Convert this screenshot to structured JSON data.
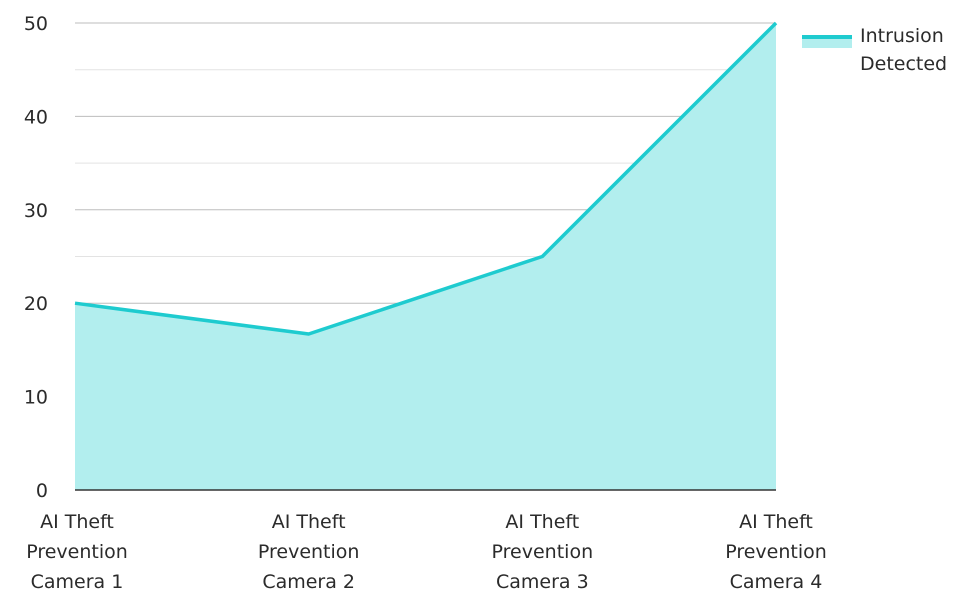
{
  "chart_data": {
    "type": "area",
    "categories": [
      "AI Theft Prevention Camera 1",
      "AI Theft Prevention Camera 2",
      "AI Theft Prevention Camera 3",
      "AI Theft Prevention Camera 4"
    ],
    "category_lines": [
      [
        "AI Theft",
        "Prevention",
        "Camera 1"
      ],
      [
        "AI Theft",
        "Prevention",
        "Camera 2"
      ],
      [
        "AI Theft",
        "Prevention",
        "Camera 3"
      ],
      [
        "AI Theft",
        "Prevention",
        "Camera 4"
      ]
    ],
    "series": [
      {
        "name": "Intrusion Detected",
        "values": [
          20,
          16.7,
          25,
          50
        ]
      }
    ],
    "yticks": [
      0,
      10,
      20,
      30,
      40,
      50
    ],
    "ylim": [
      0,
      50
    ],
    "grid": true,
    "legend_position": "top-right",
    "colors": {
      "line": "#1ecbcf",
      "fill": "#b2eeee",
      "grid": "#c9c9c9",
      "axis": "#333333"
    }
  },
  "legend": {
    "label": "Intrusion Detected"
  }
}
